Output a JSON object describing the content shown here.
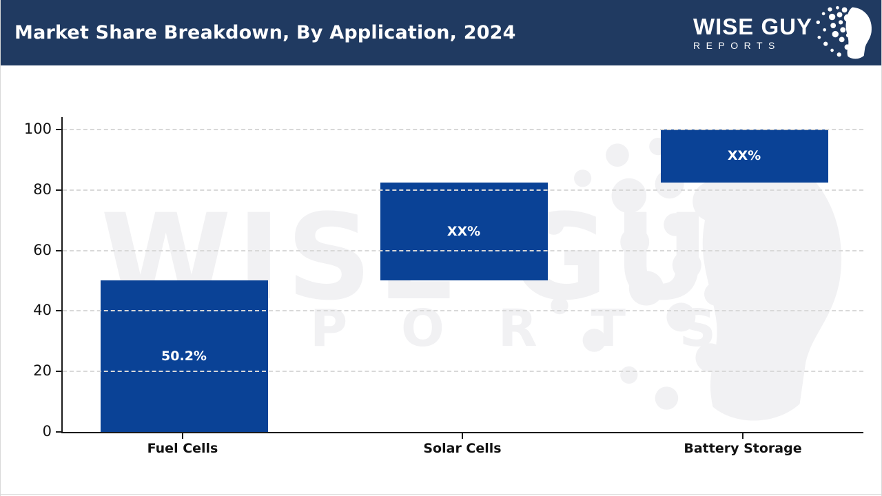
{
  "header": {
    "title": "Market Share Breakdown, By Application, 2024",
    "logo": {
      "line1": "WISE GUY",
      "line2": "REPORTS"
    }
  },
  "watermark": {
    "line1": "WISE GUY",
    "line2": "R E P O R T S"
  },
  "colors": {
    "header_bg": "#203a61",
    "bar": "#0a4296",
    "gridline": "#d8d8d8",
    "watermark": "#f1f1f3",
    "axis": "#1a1a1a",
    "bar_label_text": "#ffffff"
  },
  "chart_data": {
    "type": "bar",
    "subtype": "floating-waterfall",
    "title": "Market Share Breakdown, By Application, 2024",
    "categories": [
      "Fuel Cells",
      "Solar Cells",
      "Battery Storage"
    ],
    "segments": [
      {
        "category": "Fuel Cells",
        "start": 0,
        "end": 50.2,
        "label": "50.2%"
      },
      {
        "category": "Solar Cells",
        "start": 50.2,
        "end": 82.5,
        "label": "XX%"
      },
      {
        "category": "Battery Storage",
        "start": 82.5,
        "end": 100,
        "label": "XX%"
      }
    ],
    "xlabel": "",
    "ylabel": "",
    "yticks": [
      0,
      20,
      40,
      60,
      80,
      100
    ],
    "ylim": [
      0,
      104
    ],
    "grid": "horizontal-dashed",
    "legend": "none"
  }
}
